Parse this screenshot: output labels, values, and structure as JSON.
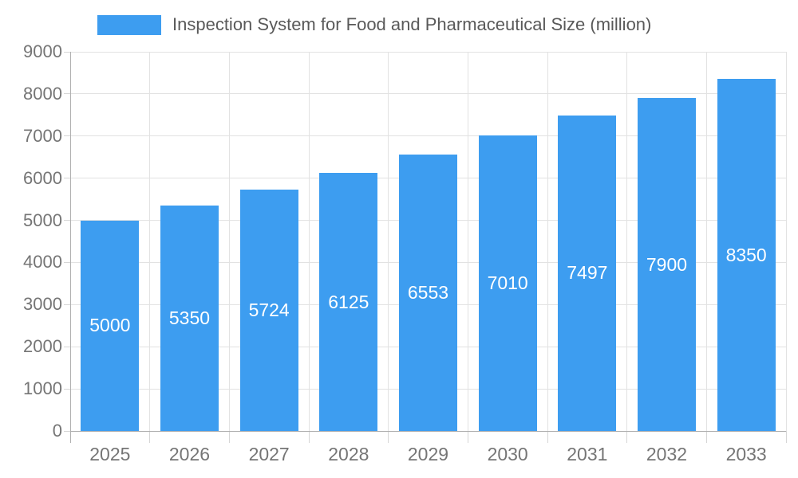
{
  "chart_data": {
    "type": "bar",
    "title": "Inspection System for Food and Pharmaceutical Size (million)",
    "series_name": "Inspection System for Food and Pharmaceutical Size (million)",
    "categories": [
      "2025",
      "2026",
      "2027",
      "2028",
      "2029",
      "2030",
      "2031",
      "2032",
      "2033"
    ],
    "values": [
      5000,
      5350,
      5724,
      6125,
      6553,
      7010,
      7497,
      7900,
      8350
    ],
    "xlabel": "",
    "ylabel": "",
    "ylim": [
      0,
      9000
    ],
    "y_ticks": [
      0,
      1000,
      2000,
      3000,
      4000,
      5000,
      6000,
      7000,
      8000,
      9000
    ],
    "grid": true,
    "legend_position": "top",
    "value_label_position": "inside-center",
    "colors": {
      "bar": "#3d9df0",
      "grid": "#e2e2e2",
      "axis": "#b0b0b0",
      "tick": "#d6d6d6",
      "tick_label": "#757575",
      "legend_text": "#595959",
      "value_label": "#ffffff",
      "background": "#ffffff"
    }
  }
}
